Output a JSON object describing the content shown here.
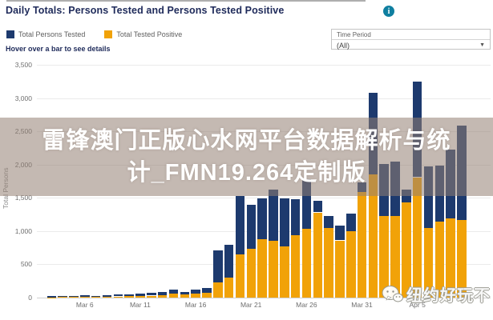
{
  "header": {
    "title": "Daily Totals: Persons Tested and Persons Tested Positive",
    "info_icon_glyph": "i"
  },
  "legend": {
    "items": [
      {
        "label": "Total Persons Tested",
        "color": "#1d3a6e"
      },
      {
        "label": "Total Tested Positive",
        "color": "#f1a208"
      }
    ]
  },
  "filter": {
    "label": "Time Period",
    "value": "(All)",
    "caret": "▼"
  },
  "hint": "Hover over a bar to see details",
  "chart_data": {
    "type": "bar",
    "stacked": true,
    "title": "Daily Totals: Persons Tested and Persons Tested Positive",
    "xlabel": "",
    "ylabel": "Total Persons",
    "ylim": [
      0,
      3500
    ],
    "ytick_step": 500,
    "grid": true,
    "legend_position": "top-left",
    "categories": [
      "Mar 3",
      "Mar 4",
      "Mar 5",
      "Mar 6",
      "Mar 7",
      "Mar 8",
      "Mar 9",
      "Mar 10",
      "Mar 11",
      "Mar 12",
      "Mar 13",
      "Mar 14",
      "Mar 15",
      "Mar 16",
      "Mar 17",
      "Mar 18",
      "Mar 19",
      "Mar 20",
      "Mar 21",
      "Mar 22",
      "Mar 23",
      "Mar 24",
      "Mar 25",
      "Mar 26",
      "Mar 27",
      "Mar 28",
      "Mar 29",
      "Mar 30",
      "Mar 31",
      "Apr 1",
      "Apr 2",
      "Apr 3",
      "Apr 4",
      "Apr 5",
      "Apr 6",
      "Apr 7",
      "Apr 8",
      "Apr 9"
    ],
    "xticks_shown": [
      "Mar 6",
      "Mar 11",
      "Mar 16",
      "Mar 21",
      "Mar 26",
      "Mar 31",
      "Apr 5"
    ],
    "series": [
      {
        "name": "Total Persons Tested",
        "color": "#1d3a6e",
        "values": [
          25,
          30,
          30,
          35,
          30,
          35,
          45,
          50,
          55,
          70,
          90,
          120,
          90,
          125,
          150,
          710,
          790,
          1530,
          1400,
          1495,
          1630,
          1495,
          1480,
          1775,
          1450,
          1230,
          1085,
          1265,
          1735,
          3080,
          2015,
          2040,
          1630,
          3245,
          1975,
          1990,
          2230,
          2590
        ]
      },
      {
        "name": "Total Tested Positive",
        "color": "#f1a208",
        "values": [
          5,
          8,
          10,
          12,
          12,
          15,
          18,
          22,
          25,
          30,
          40,
          55,
          45,
          60,
          75,
          230,
          300,
          650,
          735,
          880,
          855,
          770,
          940,
          1035,
          1280,
          1050,
          860,
          1000,
          1590,
          1855,
          1230,
          1230,
          1435,
          1810,
          1050,
          1145,
          1190,
          1170
        ]
      }
    ]
  },
  "overlay": {
    "line1": "雷锋澳门正版心水网平台数据解析与统",
    "line2": "计_FMN19.264定制版"
  },
  "watermark": {
    "text": "纽约好玩不"
  }
}
